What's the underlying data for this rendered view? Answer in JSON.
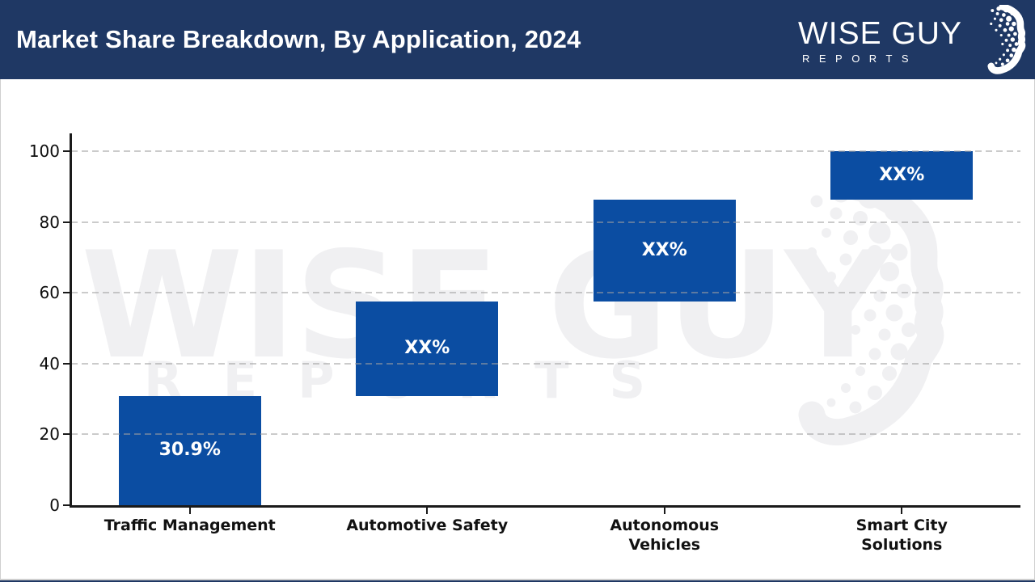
{
  "header": {
    "title": "Market Share Breakdown, By Application, 2024",
    "background_color": "#1f3864",
    "logo": {
      "wordmark": "WISE GUY",
      "subtext": "REPORTS"
    }
  },
  "watermark": {
    "line1": "WISE GUY",
    "line2": "REPORTS"
  },
  "chart_data": {
    "type": "bar",
    "variant": "waterfall",
    "title": "Market Share Breakdown, By Application, 2024",
    "categories": [
      "Traffic Management",
      "Automotive Safety",
      "Autonomous Vehicles",
      "Smart City Solutions"
    ],
    "tick_labels": [
      "Traffic Management",
      "Automotive Safety",
      "Autonomous\nVehicles",
      "Smart City\nSolutions"
    ],
    "series": [
      {
        "name": "Market share (%)",
        "segments": [
          {
            "category": "Traffic Management",
            "start": 0,
            "end": 30.9,
            "label": "30.9%"
          },
          {
            "category": "Automotive Safety",
            "start": 30.9,
            "end": 57.6,
            "label": "XX%"
          },
          {
            "category": "Autonomous Vehicles",
            "start": 57.6,
            "end": 86.2,
            "label": "XX%"
          },
          {
            "category": "Smart City Solutions",
            "start": 86.2,
            "end": 100,
            "label": "XX%"
          }
        ]
      }
    ],
    "yticks": [
      0,
      20,
      40,
      60,
      80,
      100
    ],
    "ylim": [
      0,
      100
    ],
    "xlabel": "",
    "ylabel": "",
    "grid": "dashed-horizontal",
    "legend": "none",
    "bar_color": "#0b4da2",
    "bar_label_color": "#ffffff"
  }
}
